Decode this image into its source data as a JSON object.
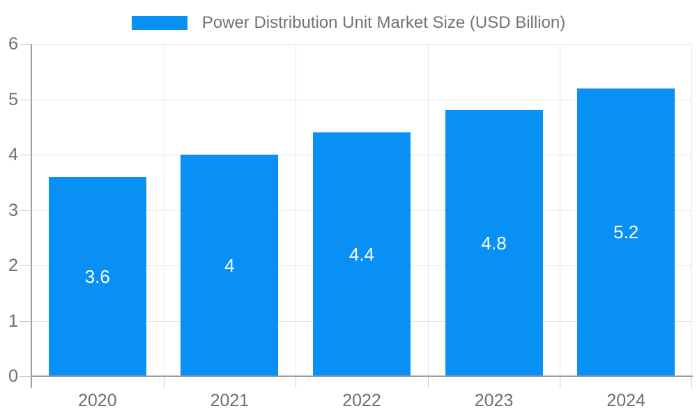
{
  "chart_data": {
    "type": "bar",
    "title": "Power Distribution Unit Market Size (USD Billion)",
    "categories": [
      "2020",
      "2021",
      "2022",
      "2023",
      "2024"
    ],
    "values": [
      3.6,
      4,
      4.4,
      4.8,
      5.2
    ],
    "value_labels": [
      "3.6",
      "4",
      "4.4",
      "4.8",
      "5.2"
    ],
    "xlabel": "",
    "ylabel": "",
    "ylim": [
      0,
      6
    ],
    "yticks": [
      0,
      1,
      2,
      3,
      4,
      5,
      6
    ],
    "grid": "on",
    "legend_position": "top-center",
    "legend_entries": [
      "Power Distribution Unit Market Size (USD Billion)"
    ],
    "colors": {
      "bar": "#0990f5",
      "title_text": "#737373",
      "axis_label_text": "#6e6e6e",
      "value_label_text": "#ffffff",
      "axis_line": "#9e9e9e",
      "gridline": "#e6e6e6",
      "tick": "#c9c9c9",
      "background": "#ffffff"
    }
  }
}
